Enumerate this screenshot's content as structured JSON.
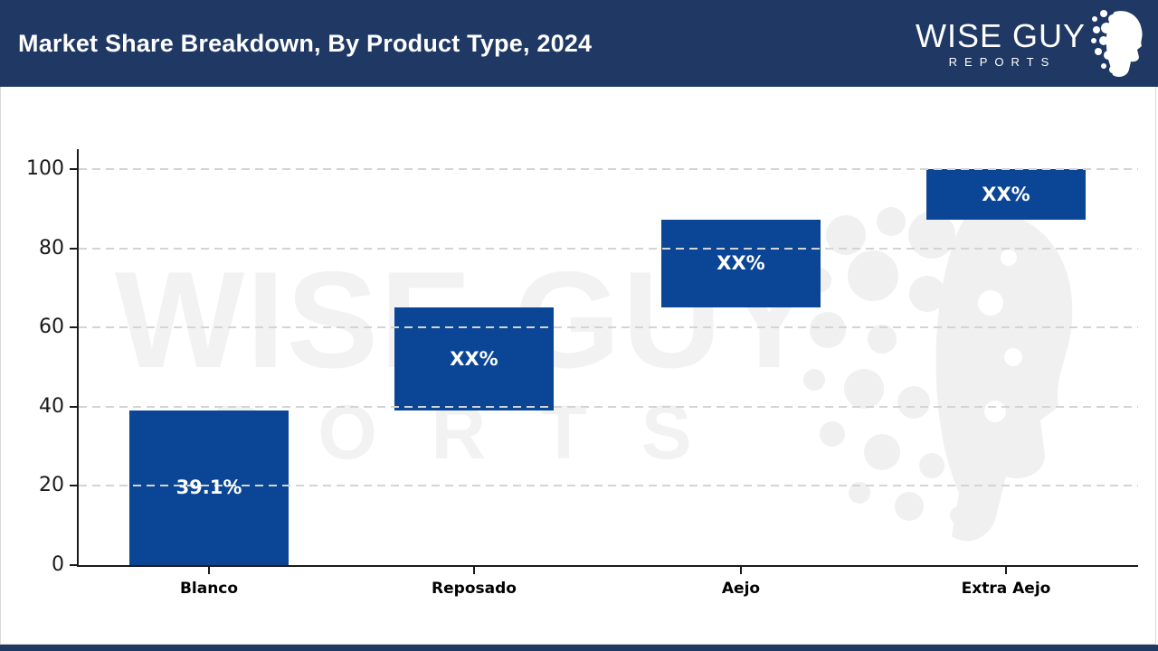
{
  "header": {
    "title": "Market Share Breakdown, By Product Type, 2024",
    "brand": {
      "line1": "WISE GUY",
      "line2": "REPORTS"
    }
  },
  "watermark": {
    "line1": "WISE GUY",
    "line2": "PORTS"
  },
  "chart_data": {
    "type": "bar",
    "subtype": "waterfall",
    "title": "Market Share Breakdown, By Product Type, 2024",
    "categories": [
      "Blanco",
      "Reposado",
      "Aejo",
      "Extra Aejo"
    ],
    "bars": [
      {
        "category": "Blanco",
        "start": 0,
        "end": 39.1,
        "label": "39.1%"
      },
      {
        "category": "Reposado",
        "start": 39.1,
        "end": 65.1,
        "label": "XX%"
      },
      {
        "category": "Aejo",
        "start": 65.1,
        "end": 87.2,
        "label": "XX%"
      },
      {
        "category": "Extra Aejo",
        "start": 87.2,
        "end": 100,
        "label": "XX%"
      }
    ],
    "ylim": [
      0,
      100
    ],
    "yticks": [
      0,
      20,
      40,
      60,
      80,
      100
    ],
    "xlabel": "",
    "ylabel": "",
    "grid": "horizontal-dashed",
    "legend": "none",
    "bar_color": "#0b4696",
    "bar_label_color": "#ffffff",
    "axis_color": "#1a1a1a",
    "grid_color": "#d4d4d4",
    "header_color": "#1f3864"
  }
}
